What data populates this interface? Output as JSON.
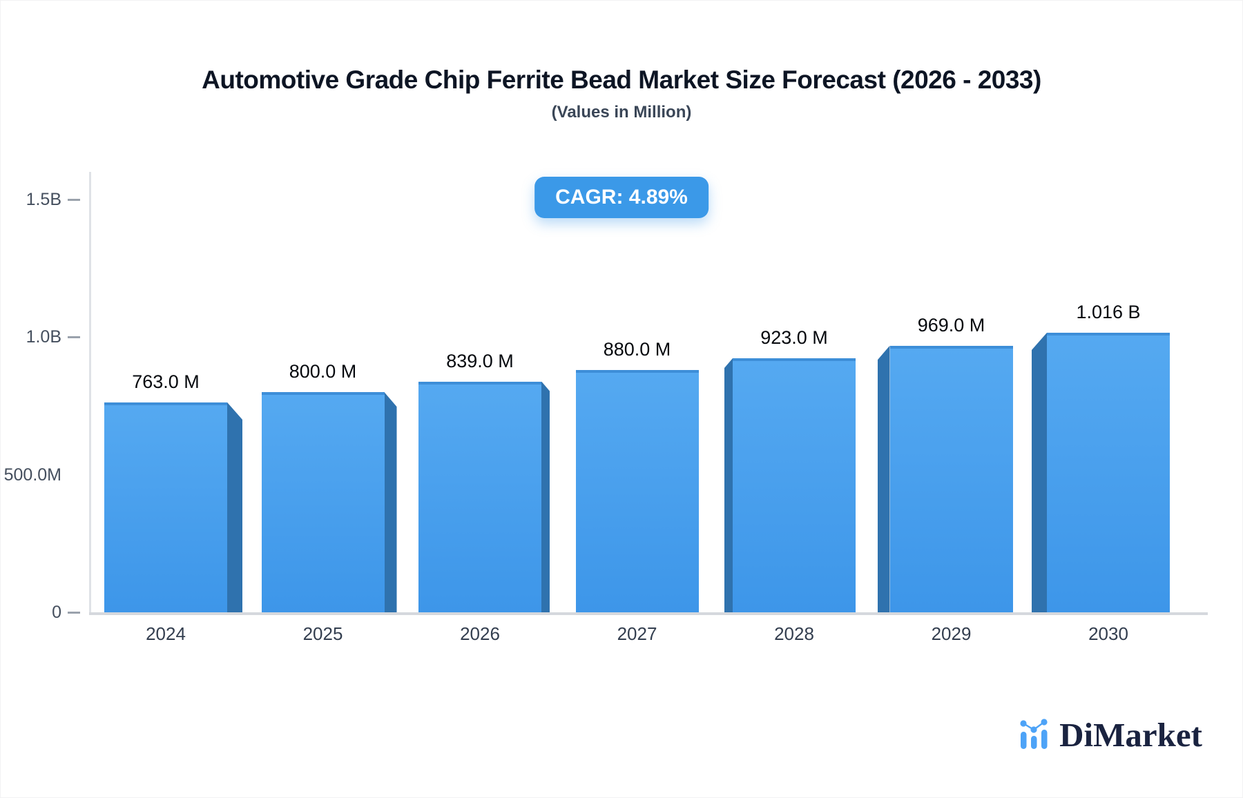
{
  "header": {
    "title": "Automotive Grade Chip Ferrite Bead Market Size Forecast (2026 - 2033)",
    "subtitle": "(Values in Million)",
    "cagr_badge": "CAGR: 4.89%"
  },
  "chart_data": {
    "type": "bar",
    "title": "Automotive Grade Chip Ferrite Bead Market Size Forecast (2026 - 2033)",
    "unit": "Million",
    "categories": [
      "2024",
      "2025",
      "2026",
      "2027",
      "2028",
      "2029",
      "2030"
    ],
    "values": [
      763,
      800,
      839,
      880,
      923,
      969,
      1016
    ],
    "value_labels": [
      "763.0 M",
      "800.0 M",
      "839.0 M",
      "880.0 M",
      "923.0 M",
      "969.0 M",
      "1.016 B"
    ],
    "xlabel": "",
    "ylabel": "",
    "ylim": [
      0,
      1500
    ],
    "yticks": [
      {
        "value": 0,
        "label": "0",
        "dash": true
      },
      {
        "value": 500,
        "label": "500.0M",
        "dash": false
      },
      {
        "value": 1000,
        "label": "1.0B",
        "dash": true
      },
      {
        "value": 1500,
        "label": "1.5B",
        "dash": true
      }
    ],
    "grid": false,
    "legend": "none",
    "cagr_percent": "4.89%"
  },
  "branding": {
    "logo_text": "DiMarket"
  },
  "colors": {
    "bar_face_top": "#55a9f1",
    "bar_face_bottom": "#3d96e9",
    "bar_top_edge": "#3d8ed8",
    "bar_side": "#2f72ae",
    "badge_bg": "#3b99e8",
    "logo_blue": "#4da3f7",
    "logo_navy": "#1a2340"
  }
}
